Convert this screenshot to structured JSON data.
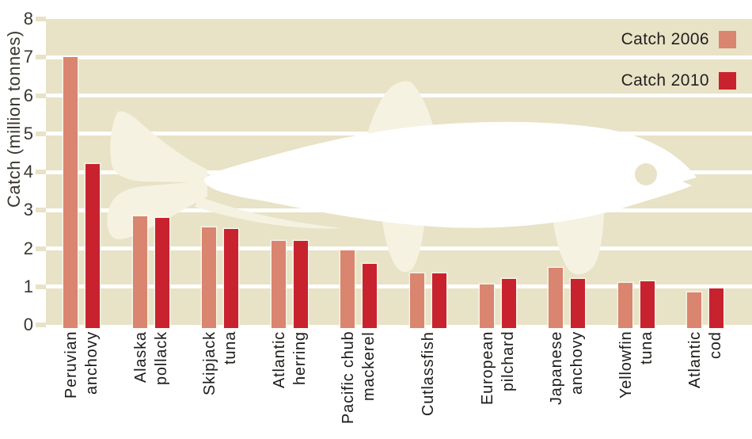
{
  "colors": {
    "page_bg": "#ffffff",
    "plot_bg": "#e8e2c6",
    "gridline": "#ffffff",
    "bar_2006": "#d9856f",
    "bar_2010": "#c8222f",
    "fish_body": "#ffffff",
    "fish_fin": "#f5f2e2",
    "axis_text": "#3a362f",
    "label_text": "#1d1b18"
  },
  "legend": {
    "items": [
      {
        "label": "Catch 2006",
        "color": "#d9856f"
      },
      {
        "label": "Catch 2010",
        "color": "#c8222f"
      }
    ]
  },
  "chart_data": {
    "type": "bar",
    "title": "",
    "ylabel": "Catch (million tonnes)",
    "xlabel": "",
    "ylim": [
      0,
      8
    ],
    "y_ticks": [
      0,
      1,
      2,
      3,
      4,
      5,
      6,
      7,
      8
    ],
    "grid": "horizontal white lines at each integer value",
    "legend_position": "top-right",
    "background_art": "white fish silhouette watermark across plot",
    "categories": [
      "Peruvian anchovy",
      "Alaska pollack",
      "Skipjack tuna",
      "Atlantic herring",
      "Pacific chub mackerel",
      "Cutlassfish",
      "European pilchard",
      "Japanese anchovy",
      "Yellowfin tuna",
      "Atlantic cod"
    ],
    "categories_wrapped": [
      [
        "Peruvian",
        "anchovy"
      ],
      [
        "Alaska",
        "pollack"
      ],
      [
        "Skipjack",
        "tuna"
      ],
      [
        "Atlantic",
        "herring"
      ],
      [
        "Pacific chub",
        "mackerel"
      ],
      [
        "Cutlassfish"
      ],
      [
        "European",
        "pilchard"
      ],
      [
        "Japanese",
        "anchovy"
      ],
      [
        "Yellowfin",
        "tuna"
      ],
      [
        "Atlantic",
        "cod"
      ]
    ],
    "series": [
      {
        "name": "Catch 2006",
        "color": "#d9856f",
        "values": [
          7.0,
          2.85,
          2.55,
          2.2,
          1.95,
          1.35,
          1.05,
          1.5,
          1.1,
          0.85
        ]
      },
      {
        "name": "Catch 2010",
        "color": "#c8222f",
        "values": [
          4.2,
          2.8,
          2.5,
          2.2,
          1.6,
          1.35,
          1.2,
          1.2,
          1.15,
          0.95
        ]
      }
    ]
  }
}
